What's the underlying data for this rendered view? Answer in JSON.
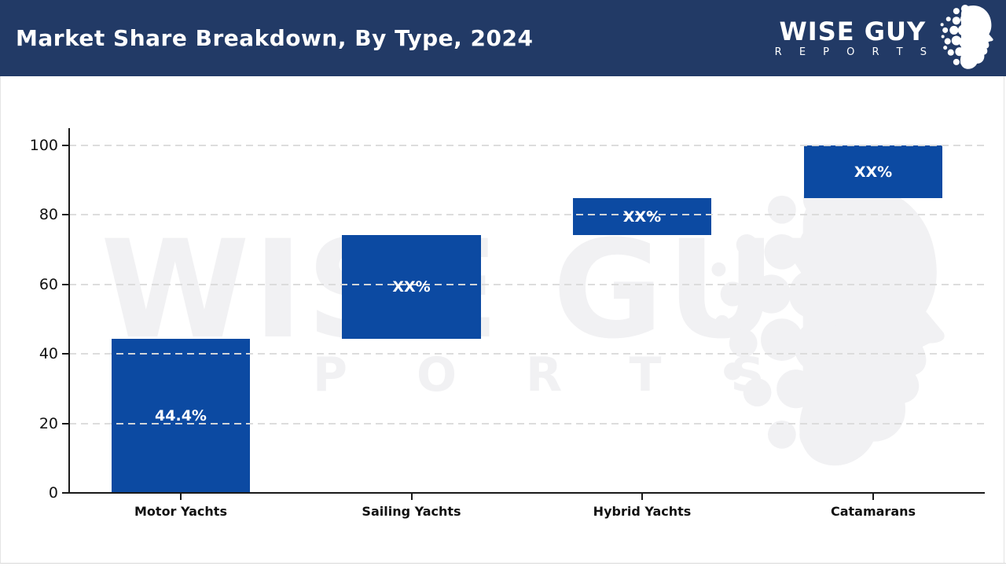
{
  "header": {
    "title": "Market Share Breakdown, By Type, 2024",
    "logo": {
      "line1": "WISE GUY",
      "line2": "R E P O R T S"
    }
  },
  "watermark": {
    "line1": "WISE GUY",
    "line2": "PORTS"
  },
  "chart_data": {
    "type": "bar",
    "subtype": "waterfall",
    "title": "Market Share Breakdown, By Type, 2024",
    "categories": [
      "Motor Yachts",
      "Sailing Yachts",
      "Hybrid Yachts",
      "Catamarans"
    ],
    "segments": [
      {
        "category": "Motor Yachts",
        "start": 0,
        "end": 44.4,
        "label": "44.4%"
      },
      {
        "category": "Sailing Yachts",
        "start": 44.4,
        "end": 74.2,
        "label": "XX%"
      },
      {
        "category": "Hybrid Yachts",
        "start": 74.2,
        "end": 84.8,
        "label": "XX%"
      },
      {
        "category": "Catamarans",
        "start": 84.8,
        "end": 100,
        "label": "XX%"
      }
    ],
    "yticks": [
      0,
      20,
      40,
      60,
      80,
      100
    ],
    "ylim": [
      0,
      105
    ],
    "xlabel": "",
    "ylabel": "",
    "grid": "horizontal dashed, drawn above bars",
    "legend": "none"
  },
  "colors": {
    "header_bg": "#223a66",
    "bar_fill": "#0c4aa2",
    "bar_label": "#ffffff",
    "axis": "#1a1a1a",
    "gridline": "#dbdbdb",
    "watermark": "#f1f1f3",
    "frame_border": "#e4e4e4",
    "bottom_rule": "#d9d9d9",
    "background": "#ffffff"
  }
}
